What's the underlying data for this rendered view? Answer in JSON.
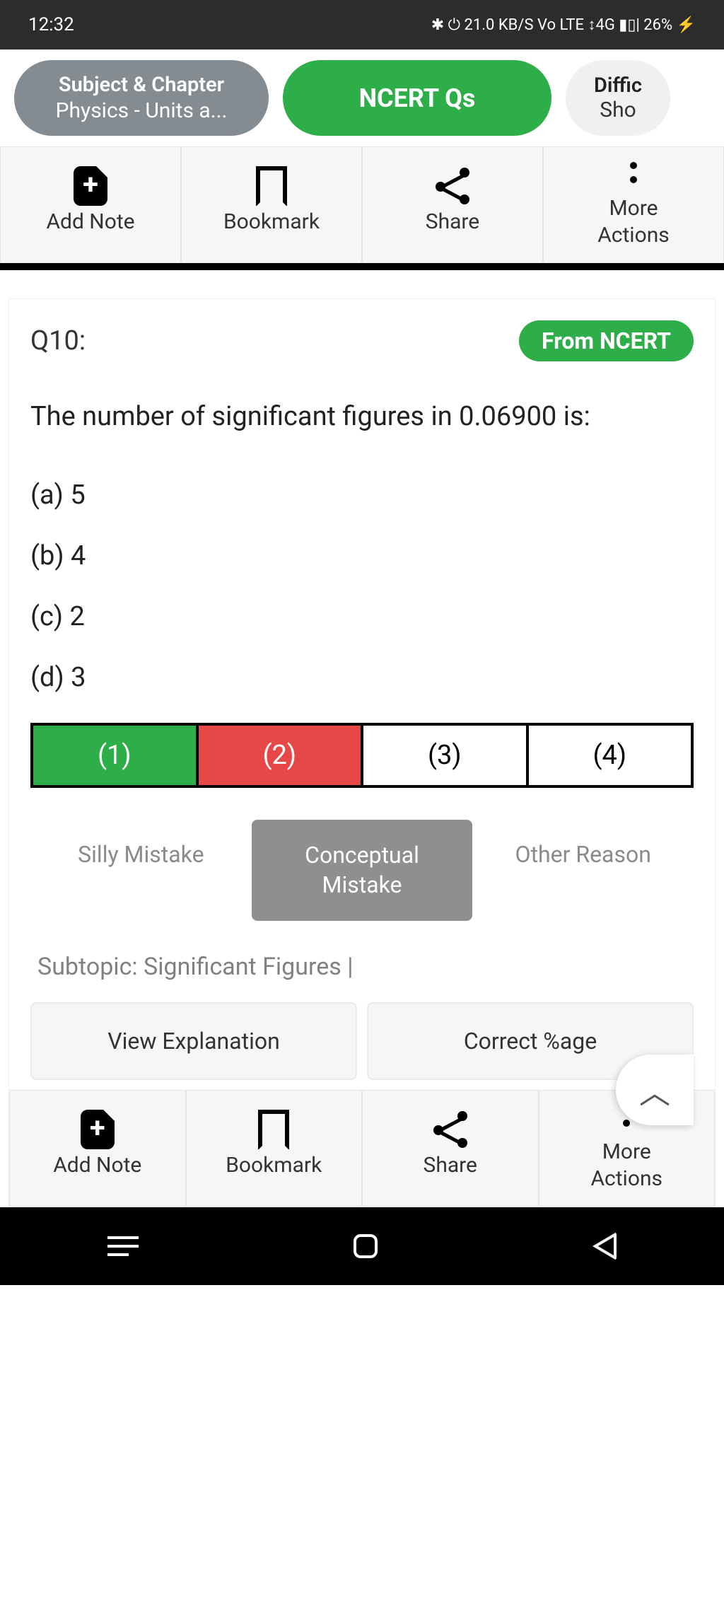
{
  "status": {
    "time": "12:32",
    "right": "✱ ⏻ 21.0 KB/S  Vo LTE  ↕4G ▮▯| 26% ⚡"
  },
  "chips": {
    "subject": {
      "line1": "Subject & Chapter",
      "line2": "Physics - Units a..."
    },
    "ncert": "NCERT Qs",
    "diff": {
      "line1": "Diffic",
      "line2": "Sho"
    }
  },
  "actions": {
    "addnote": "Add Note",
    "bookmark": "Bookmark",
    "share": "Share",
    "more": "More\nActions"
  },
  "q": {
    "num": "Q10:",
    "badge": "From NCERT",
    "text": "The number of significant figures in 0.06900 is:",
    "a": "(a) 5",
    "b": "(b) 4",
    "c": "(c) 2",
    "d": "(d) 3"
  },
  "answers": {
    "a1": "(1)",
    "a2": "(2)",
    "a3": "(3)",
    "a4": "(4)"
  },
  "reasons": {
    "r1": "Silly Mistake",
    "r2": "Conceptual\nMistake",
    "r3": "Other Reason"
  },
  "subtopic": "Subtopic:  Significant Figures |",
  "exp": {
    "view": "View Explanation",
    "pct": "Correct %age"
  }
}
